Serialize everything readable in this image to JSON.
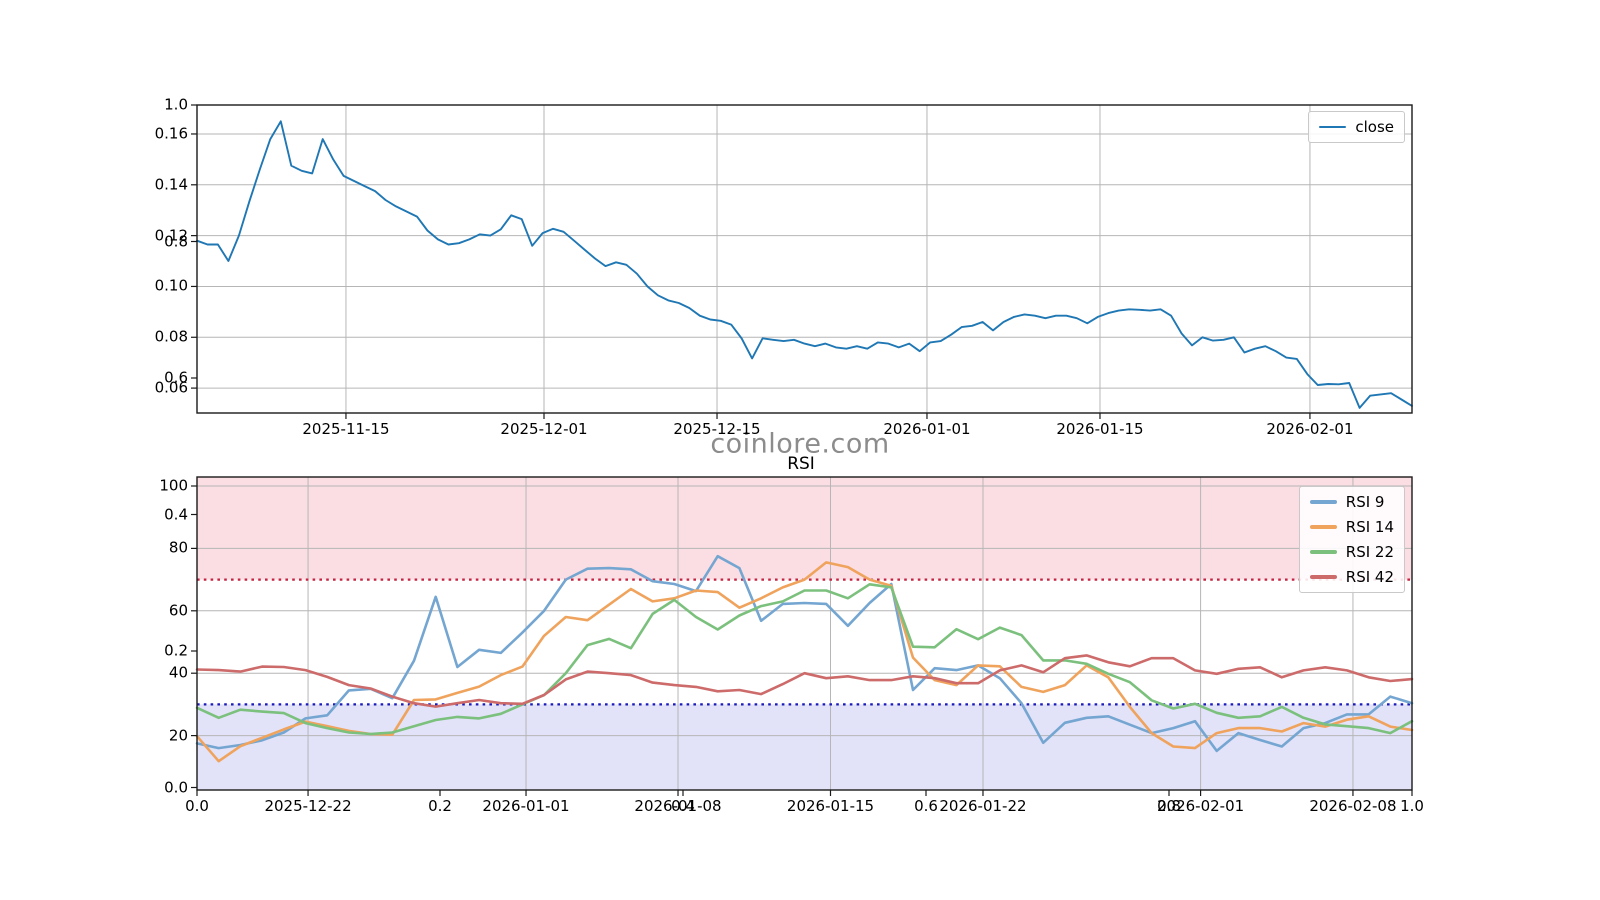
{
  "watermark": "coinlore.com",
  "colors": {
    "grid": "#b6b6b6",
    "spine": "#1a1a1a",
    "close_line": "#1f77b4",
    "overbought_band": "#fbdee3",
    "oversold_band": "#e2e2f8",
    "overbought_line": "#c32240",
    "oversold_line": "#1a1ab8",
    "watermark_text": "#8c8c8c"
  },
  "overlay_axis": {
    "x_ticks": [
      {
        "label": "0.0",
        "f": 0.0
      },
      {
        "label": "0.2",
        "f": 0.2
      },
      {
        "label": "0.4",
        "f": 0.4
      },
      {
        "label": "0.6",
        "f": 0.6
      },
      {
        "label": "0.8",
        "f": 0.8
      },
      {
        "label": "1.0",
        "f": 1.0
      }
    ],
    "y_ticks": [
      {
        "label": "1.0",
        "f": 1.0
      },
      {
        "label": "0.8",
        "f": 0.8
      },
      {
        "label": "0.6",
        "f": 0.6
      },
      {
        "label": "0.4",
        "f": 0.4
      },
      {
        "label": "0.2",
        "f": 0.2
      },
      {
        "label": "0.0",
        "f": 0.0
      }
    ]
  },
  "chart_data": [
    {
      "type": "line",
      "title": "",
      "xlabel": "",
      "ylabel": "",
      "grid": true,
      "legend_position": "upper right",
      "ylim": [
        0.0502,
        0.1714
      ],
      "y_ticks": [
        {
          "label": "0.16",
          "v": 0.16
        },
        {
          "label": "0.14",
          "v": 0.14
        },
        {
          "label": "0.12",
          "v": 0.12
        },
        {
          "label": "0.10",
          "v": 0.1
        },
        {
          "label": "0.08",
          "v": 0.08
        },
        {
          "label": "0.06",
          "v": 0.06
        }
      ],
      "x_ticks": [
        {
          "label": "2025-11-15",
          "f": 0.1226
        },
        {
          "label": "2025-12-01",
          "f": 0.2856
        },
        {
          "label": "2025-12-15",
          "f": 0.428
        },
        {
          "label": "2026-01-01",
          "f": 0.6008
        },
        {
          "label": "2026-01-15",
          "f": 0.7432
        },
        {
          "label": "2026-02-01",
          "f": 0.916
        }
      ],
      "series": [
        {
          "name": "close",
          "color": "#1f77b4",
          "values": [
            0.118,
            0.1165,
            0.1165,
            0.11,
            0.12,
            0.1335,
            0.146,
            0.158,
            0.165,
            0.1475,
            0.1455,
            0.1445,
            0.158,
            0.15,
            0.1435,
            0.1415,
            0.1395,
            0.1375,
            0.134,
            0.1315,
            0.1295,
            0.1275,
            0.122,
            0.1185,
            0.1165,
            0.117,
            0.1185,
            0.1205,
            0.12,
            0.1225,
            0.128,
            0.1265,
            0.116,
            0.121,
            0.1227,
            0.1215,
            0.118,
            0.1145,
            0.111,
            0.108,
            0.1095,
            0.1085,
            0.105,
            0.1,
            0.0965,
            0.0945,
            0.0935,
            0.0915,
            0.0885,
            0.087,
            0.0865,
            0.085,
            0.0795,
            0.0717,
            0.0796,
            0.079,
            0.0785,
            0.079,
            0.0775,
            0.0765,
            0.0775,
            0.076,
            0.0755,
            0.0765,
            0.0755,
            0.078,
            0.0775,
            0.076,
            0.0775,
            0.0745,
            0.078,
            0.0785,
            0.081,
            0.084,
            0.0845,
            0.086,
            0.0827,
            0.086,
            0.088,
            0.089,
            0.0885,
            0.0875,
            0.0885,
            0.0885,
            0.0875,
            0.0855,
            0.088,
            0.0895,
            0.0905,
            0.091,
            0.0908,
            0.0905,
            0.091,
            0.0885,
            0.0815,
            0.0768,
            0.08,
            0.0787,
            0.079,
            0.08,
            0.074,
            0.0755,
            0.0765,
            0.0745,
            0.072,
            0.0715,
            0.0655,
            0.0612,
            0.0616,
            0.0615,
            0.062,
            0.0522,
            0.057,
            0.0575,
            0.058,
            0.0555,
            0.053
          ]
        }
      ]
    },
    {
      "type": "line",
      "title": "RSI",
      "xlabel": "",
      "ylabel": "",
      "grid": true,
      "legend_position": "upper right",
      "ylim": [
        0,
        100
      ],
      "overbought": 70,
      "oversold": 30,
      "y_ticks": [
        {
          "label": "100",
          "v": 100
        },
        {
          "label": "80",
          "v": 80
        },
        {
          "label": "60",
          "v": 60
        },
        {
          "label": "40",
          "v": 40
        },
        {
          "label": "20",
          "v": 20
        }
      ],
      "x_ticks": [
        {
          "label": "2025-12-22",
          "f": 0.0914
        },
        {
          "label": "2026-01-01",
          "f": 0.2708
        },
        {
          "label": "2026-01-08",
          "f": 0.3959
        },
        {
          "label": "2026-01-15",
          "f": 0.5214
        },
        {
          "label": "2026-01-22",
          "f": 0.6469
        },
        {
          "label": "2026-02-01",
          "f": 0.826
        },
        {
          "label": "2026-02-08",
          "f": 0.9514
        }
      ],
      "series": [
        {
          "name": "RSI 9",
          "color": "#74a6d1",
          "values": [
            17.5,
            16,
            17,
            18.5,
            21,
            25.5,
            26.5,
            34.5,
            35,
            32,
            44,
            64.5,
            42,
            47.5,
            46.5,
            53,
            60,
            70,
            73.5,
            73.7,
            73.3,
            69.5,
            68.6,
            66.3,
            77.5,
            73.7,
            56.8,
            62.2,
            62.5,
            62.2,
            55.2,
            62.5,
            68.6,
            34.6,
            41.6,
            41,
            42.5,
            38.4,
            30.4,
            17.7,
            24.1,
            25.7,
            26.2,
            23.5,
            20.8,
            22.4,
            24.6,
            15.1,
            20.8,
            18.6,
            16.5,
            22.4,
            24,
            26.8,
            26.8,
            32.5,
            30.4
          ]
        },
        {
          "name": "RSI 14",
          "color": "#efa35c",
          "values": [
            19.8,
            11.8,
            16.6,
            19.3,
            22,
            24.5,
            23,
            21.5,
            20.5,
            20.3,
            31.4,
            31.6,
            33.7,
            35.7,
            39.4,
            42.1,
            52,
            58,
            57,
            62,
            67,
            63,
            64,
            66.5,
            66,
            61,
            64,
            67.5,
            70,
            75.5,
            74,
            70,
            68,
            45,
            37.8,
            36.2,
            42.5,
            42.2,
            35.6,
            34,
            36.2,
            42.5,
            38.7,
            29.2,
            20.8,
            16.5,
            16,
            20.8,
            22.4,
            22.4,
            21.3,
            24,
            22.9,
            25.1,
            26.2,
            22.9,
            21.8
          ]
        },
        {
          "name": "RSI 22",
          "color": "#7bc07d",
          "values": [
            28.9,
            25.7,
            28.3,
            27.7,
            27.2,
            24,
            22.4,
            21,
            20.5,
            21,
            23,
            25,
            26,
            25.5,
            27,
            30,
            33,
            40,
            49,
            51,
            48,
            59,
            63.5,
            58,
            54,
            58.5,
            61.5,
            63,
            66.5,
            66.5,
            64,
            68.5,
            67.5,
            48.5,
            48.3,
            54.1,
            50.9,
            54.6,
            52.2,
            44.1,
            44.1,
            43,
            39.8,
            37.1,
            31.3,
            28.7,
            30.2,
            27.3,
            25.7,
            26.2,
            29.2,
            25.7,
            23.6,
            23,
            22.4,
            20.8,
            24.6
          ]
        },
        {
          "name": "RSI 42",
          "color": "#cd6b6b",
          "values": [
            41.2,
            41,
            40.5,
            42.1,
            42,
            41,
            38.8,
            36.2,
            35.1,
            32.5,
            30.4,
            29.3,
            30.4,
            31.4,
            30.4,
            30.2,
            33,
            38,
            40.5,
            40,
            39.4,
            37,
            36.2,
            35.6,
            34.2,
            34.6,
            33.3,
            36.5,
            40,
            38.4,
            39,
            37.8,
            37.8,
            39,
            38.4,
            36.8,
            36.8,
            40.9,
            42.5,
            40.3,
            44.8,
            45.7,
            43.5,
            42.2,
            44.8,
            44.8,
            40.9,
            39.8,
            41.4,
            41.9,
            38.7,
            40.9,
            41.9,
            40.9,
            38.7,
            37.5,
            38.1
          ]
        }
      ]
    }
  ]
}
